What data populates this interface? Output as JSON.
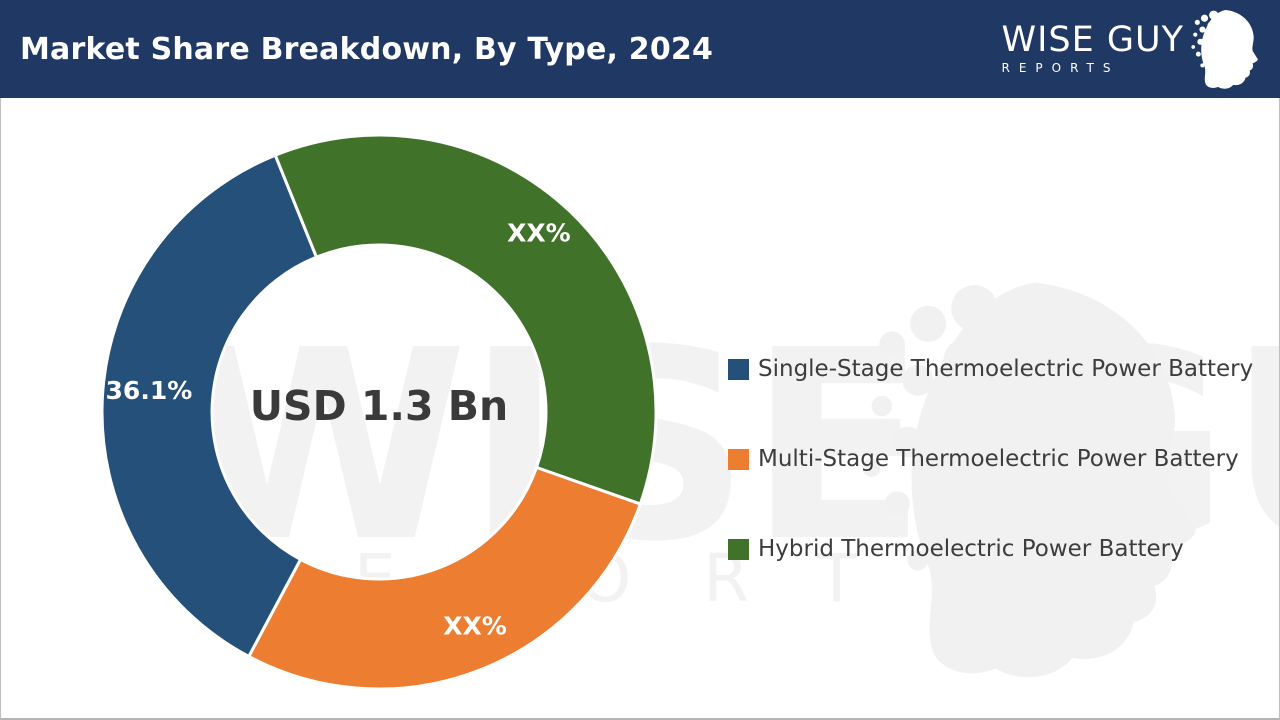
{
  "header": {
    "title": "Market Share Breakdown, By Type, 2024",
    "bg_color": "#1f3864",
    "logo": {
      "line1": "WISE GUY",
      "line2": "REPORTS"
    }
  },
  "watermark": {
    "line1": "WISE GUY",
    "line2": "REPORTS"
  },
  "chart_data": {
    "type": "pie",
    "donut": true,
    "title": "Market Share Breakdown, By Type, 2024",
    "center_label": "USD 1.3 Bn",
    "start_azimuth_deg": -22,
    "segments": [
      {
        "name": "Hybrid Thermoelectric Power Battery",
        "display_label": "XX%",
        "value_pct": 36.5,
        "color": "#41722a",
        "label_az_deg": 42,
        "label_r": 239
      },
      {
        "name": "Multi-Stage Thermoelectric Power Battery",
        "display_label": "XX%",
        "value_pct": 27.4,
        "color": "#ed7d31",
        "label_az_deg": 156,
        "label_r": 236
      },
      {
        "name": "Single-Stage Thermoelectric Power Battery",
        "display_label": "36.1%",
        "value_pct": 36.1,
        "color": "#24507a",
        "label_az_deg": 275,
        "label_r": 231
      }
    ],
    "legend_position": "right"
  },
  "legend": {
    "items": [
      {
        "label": "Single-Stage Thermoelectric Power Battery",
        "color": "#24507a"
      },
      {
        "label": "Multi-Stage Thermoelectric Power Battery",
        "color": "#ed7d31"
      },
      {
        "label": "Hybrid Thermoelectric Power Battery",
        "color": "#41722a"
      }
    ]
  }
}
